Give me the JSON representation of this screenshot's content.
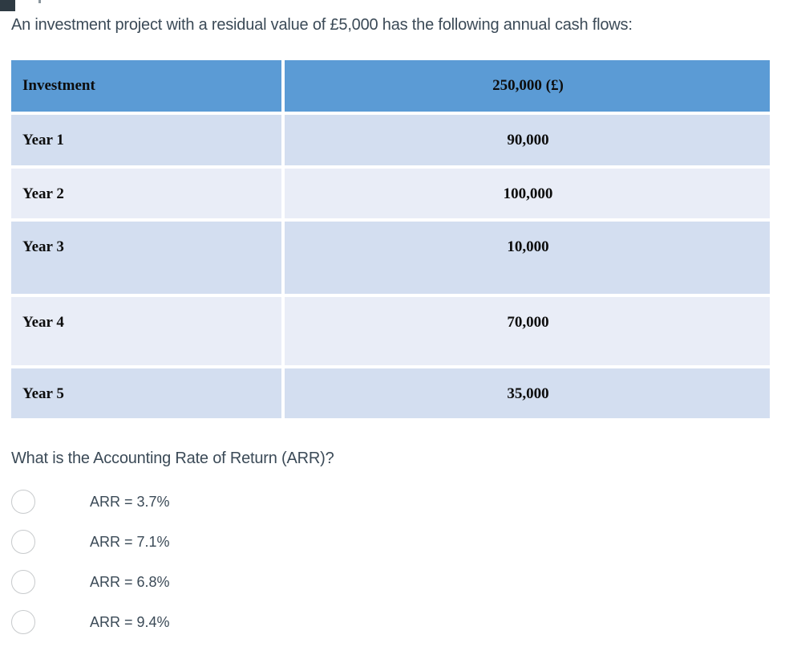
{
  "page": {
    "prompt": "An investment project with a residual value of £5,000 has the following annual cash flows:",
    "question": "What is the Accounting Rate of Return (ARR)?"
  },
  "table": {
    "header": {
      "label": "Investment",
      "value": "250,000 (£)"
    },
    "rows": [
      {
        "label": "Year 1",
        "value": "90,000"
      },
      {
        "label": "Year 2",
        "value": "100,000"
      },
      {
        "label": "Year 3",
        "value": "10,000"
      },
      {
        "label": "Year 4",
        "value": "70,000"
      },
      {
        "label": "Year 5",
        "value": "35,000"
      }
    ]
  },
  "options": [
    {
      "label": "ARR = 3.7%",
      "selected": false
    },
    {
      "label": "ARR = 7.1%",
      "selected": false
    },
    {
      "label": "ARR = 6.8%",
      "selected": false
    },
    {
      "label": "ARR = 9.4%",
      "selected": false
    }
  ],
  "colors": {
    "table_header_bg": "#5b9bd5",
    "table_row_odd_bg": "#d3def0",
    "table_row_even_bg": "#e9edf7",
    "table_text": "#0d0d0d",
    "body_text": "#3b4a57",
    "radio_border": "#c7cacc",
    "artifact_dark": "#2e3a43"
  }
}
